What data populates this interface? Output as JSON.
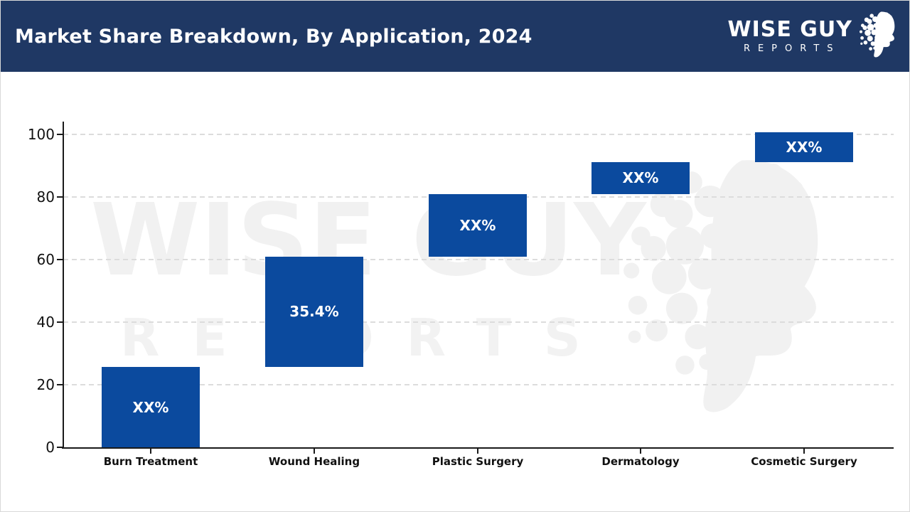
{
  "header": {
    "title": "Market Share Breakdown, By Application, 2024",
    "logo": {
      "brand": "WISE GUY",
      "sub": "REPORTS"
    }
  },
  "watermark": {
    "line1": "WISE GUY",
    "line2": "REPORTS"
  },
  "chart_data": {
    "type": "bar",
    "subtype": "floating-waterfall",
    "title": "Market Share Breakdown, By Application, 2024",
    "categories": [
      "Burn Treatment",
      "Wound Healing",
      "Plastic Surgery",
      "Dermatology",
      "Cosmetic Surgery"
    ],
    "segments": [
      {
        "category": "Burn Treatment",
        "start": 0,
        "end": 25.6,
        "label": "XX%"
      },
      {
        "category": "Wound Healing",
        "start": 25.6,
        "end": 61.0,
        "label": "35.4%"
      },
      {
        "category": "Plastic Surgery",
        "start": 61.0,
        "end": 81.0,
        "label": "XX%"
      },
      {
        "category": "Dermatology",
        "start": 81.0,
        "end": 91.2,
        "label": "XX%"
      },
      {
        "category": "Cosmetic Surgery",
        "start": 91.2,
        "end": 100.6,
        "label": "XX%"
      }
    ],
    "values_estimated": [
      25.6,
      35.4,
      20.0,
      10.2,
      9.4
    ],
    "y_ticks": [
      0,
      20,
      40,
      60,
      80,
      100
    ],
    "ylim": [
      0,
      104
    ],
    "xlabel": "",
    "ylabel": "",
    "grid": "horizontal-dashed",
    "legend": "none",
    "bar_color": "#0b4a9e",
    "bar_label_color": "#ffffff"
  },
  "colors": {
    "header_bg": "#1f3864",
    "bar": "#0b4a9e",
    "grid": "#dcdcdc",
    "axis": "#1a1a1a",
    "watermark": "#f1f1f1",
    "frame_border": "#d9d9d9"
  }
}
